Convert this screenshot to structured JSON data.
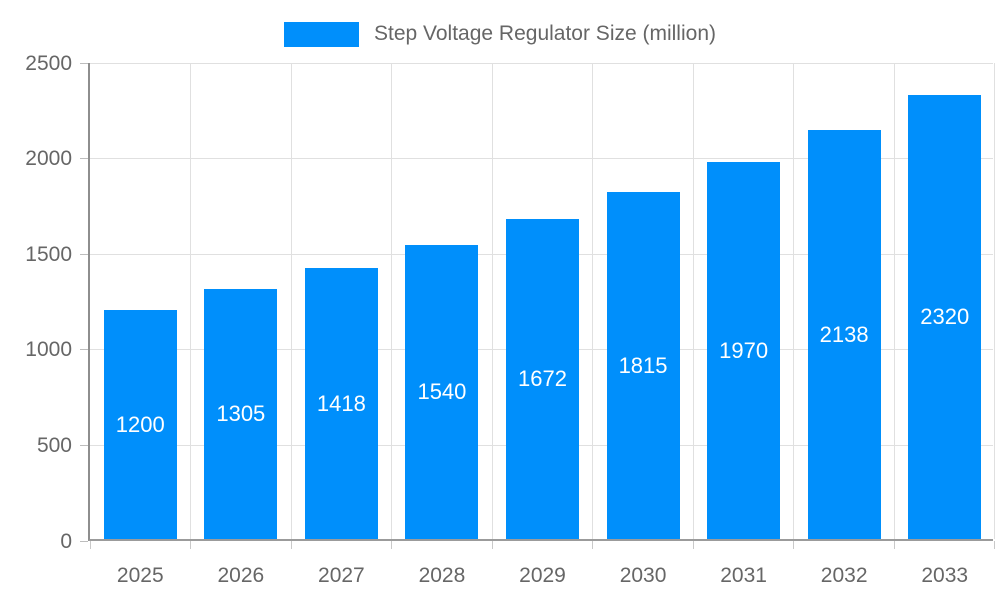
{
  "legend": {
    "label": "Step Voltage Regulator Size (million)",
    "swatch_color": "#008FFB"
  },
  "chart_data": {
    "type": "bar",
    "title": "Step Voltage Regulator Size (million)",
    "categories": [
      "2025",
      "2026",
      "2027",
      "2028",
      "2029",
      "2030",
      "2031",
      "2032",
      "2033"
    ],
    "values": [
      1200,
      1305,
      1418,
      1540,
      1672,
      1815,
      1970,
      2138,
      2320
    ],
    "xlabel": "",
    "ylabel": "",
    "ylim": [
      0,
      2500
    ],
    "yticks": [
      0,
      500,
      1000,
      1500,
      2000,
      2500
    ],
    "grid": true,
    "legend_position": "top",
    "bar_color": "#008FFB",
    "bar_label_color": "#ffffff"
  },
  "colors": {
    "axis": "#8e8e8e",
    "grid": "#e0e0e0",
    "tick_text": "#666666"
  }
}
